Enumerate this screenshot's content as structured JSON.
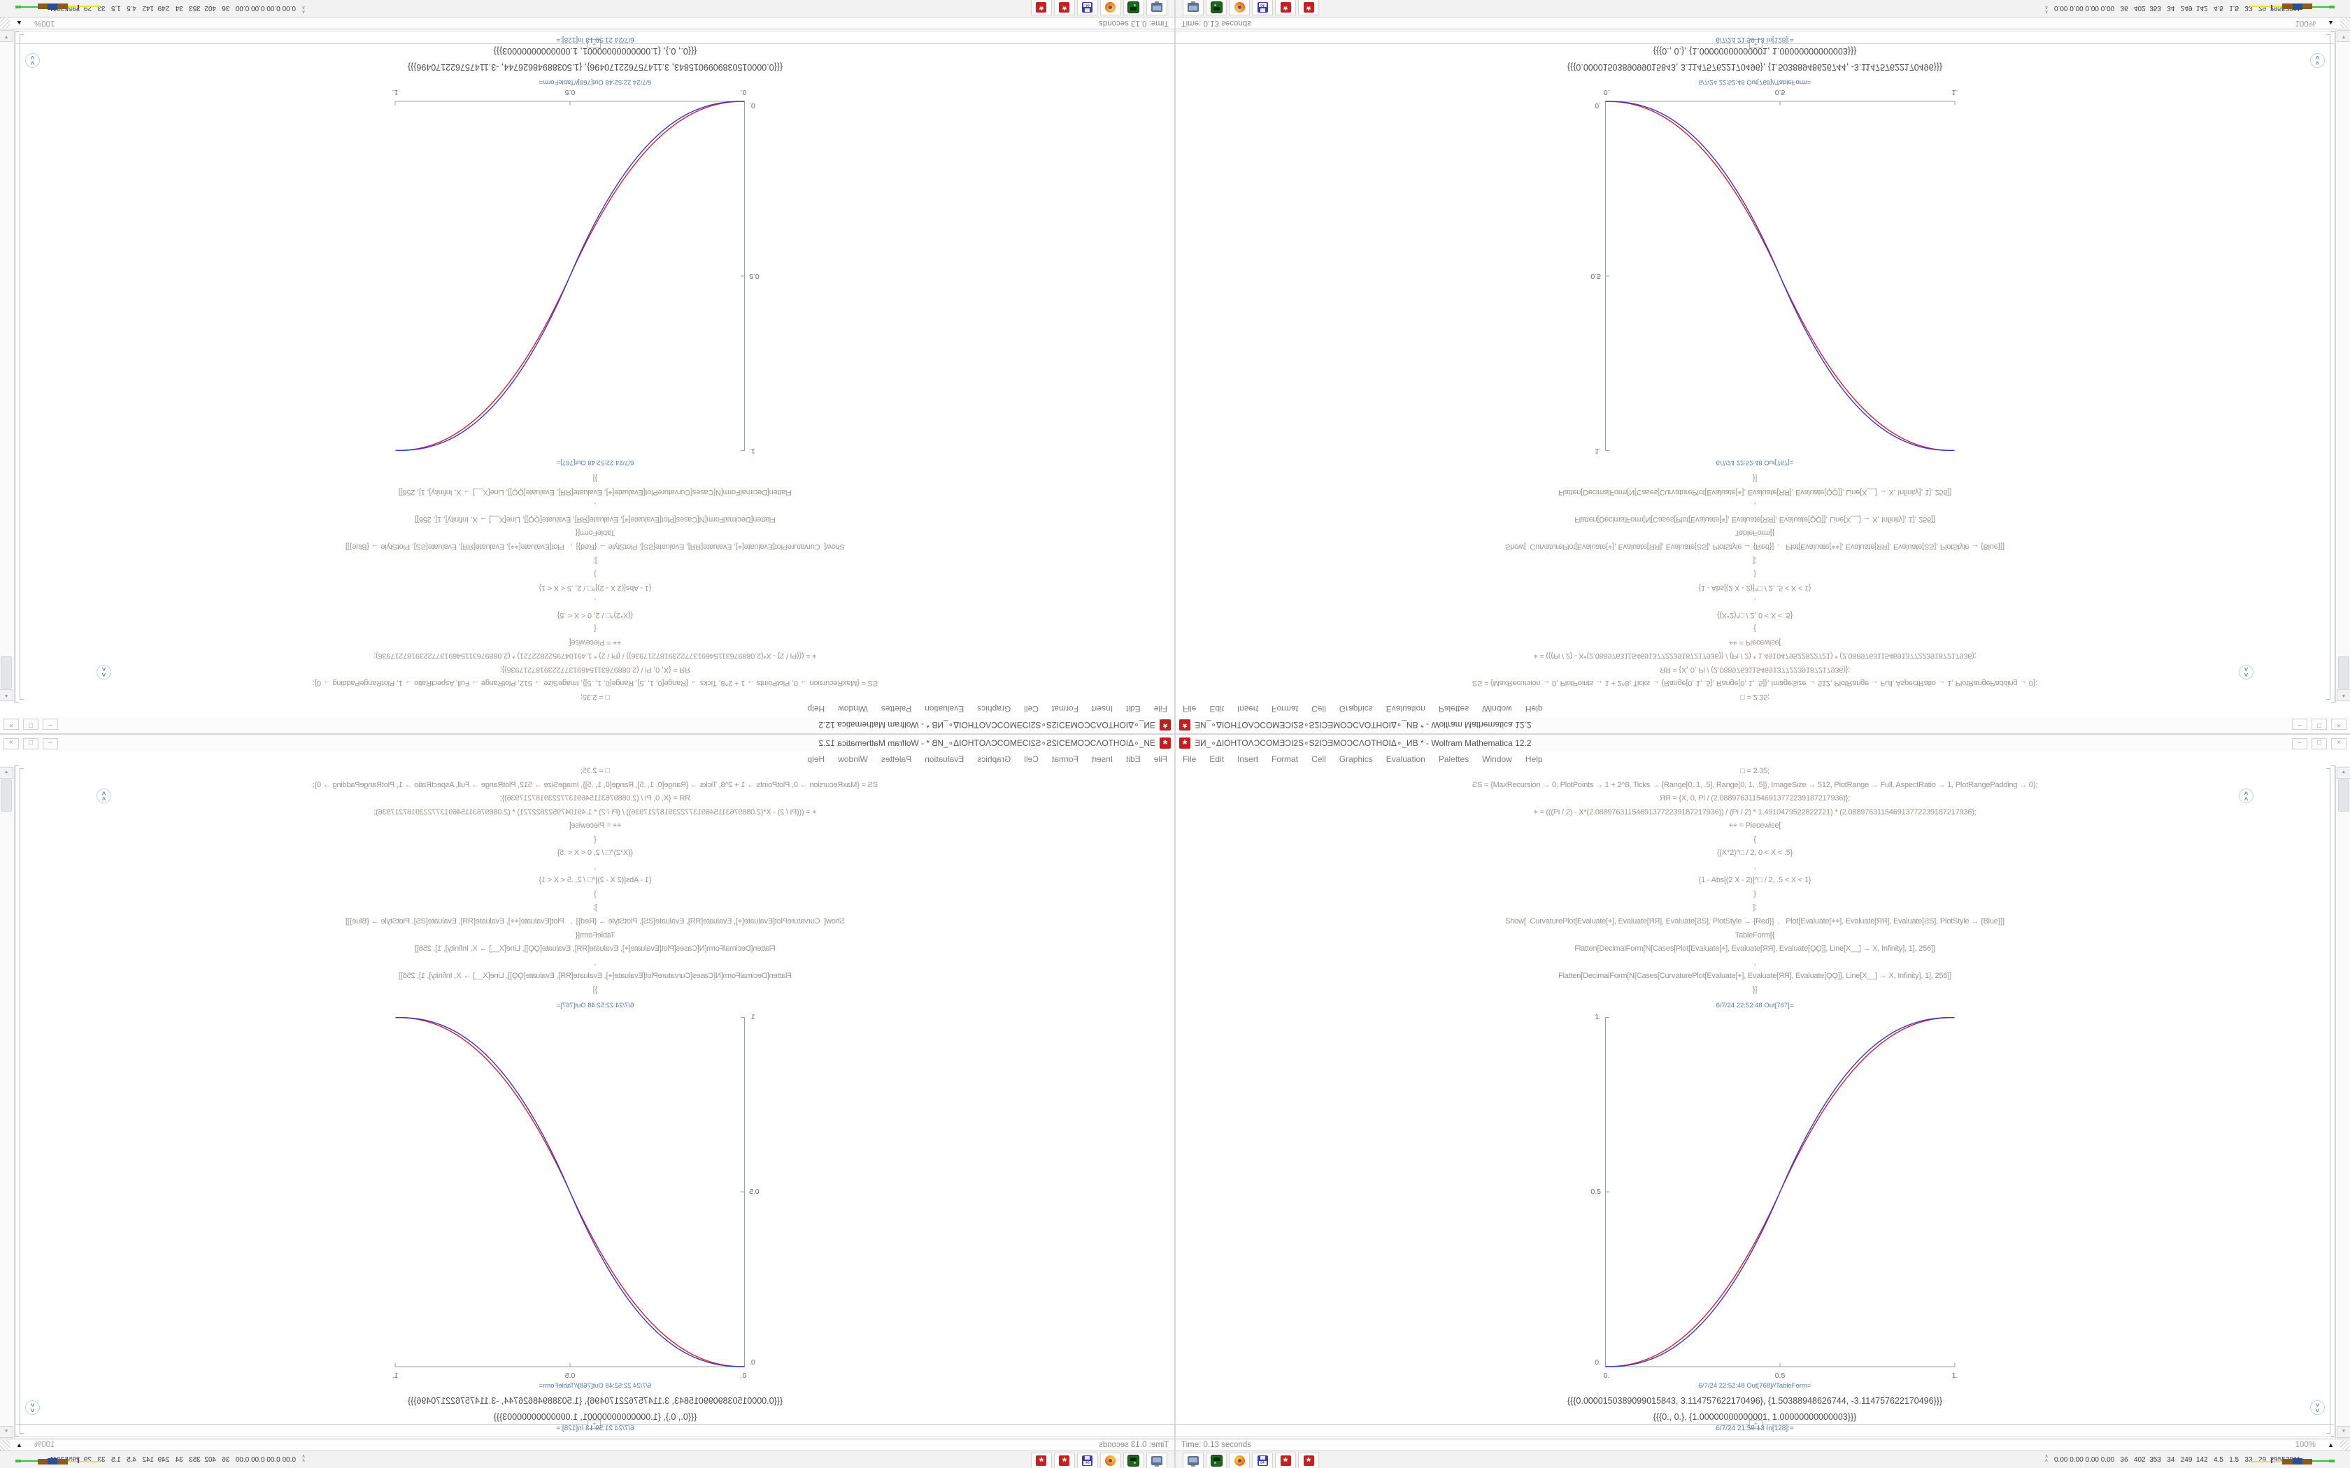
{
  "screen": {
    "window": {
      "title": "ƎИ_∘ΔIOHTOΛƆCOMƎƆI2S∘S2IƆƎMOƆCΛOTHOIΔ∘_ИB * - Wolfram Mathematica 12.2",
      "app_icon": "*",
      "buttons": {
        "minimize": "–",
        "maximize": "□",
        "close": "×"
      }
    },
    "menu": {
      "items": [
        "File",
        "Edit",
        "Insert",
        "Format",
        "Cell",
        "Graphics",
        "Evaluation",
        "Palettes",
        "Window",
        "Help"
      ]
    },
    "notebook": {
      "code_lines": [
        "□ = 2.35;",
        "ƧS = {MaxRecursion → 0, PlotPoints → 1 + 2^8, Ticks → {Range[0, 1, .5], Range[0, 1, .5]}, ImageSize → 512, PlotRange → Full, AspectRatio → 1, PlotRangePadding → 0};",
        "ЯЯ = {X, 0, Pi / (2.088976311546913772239187217936)};",
        "⌖ = (((Pi / 2) - X*(2.088976311546913772239187217936)) / (Pi / 2) * 1.4910479522822721) * (2.088976311546913772239187217936);",
        "⌖⌖ = Piecewise[",
        "{",
        "{(X*2)^□ / 2, 0 < X < .5}",
        ",",
        "{1 - Abs[(2 X - 2)]^□ / 2, .5 < X < 1}",
        "}",
        "];",
        "Show[  CurvaturePlot[Evaluate[⌖], Evaluate[ЯЯ], Evaluate[ƧS], PlotStyle → {Red}]  ,   Plot[Evaluate[⌖⌖], Evaluate[ЯЯ], Evaluate[ƧS], PlotStyle → {Blue}]]",
        "TableForm[{",
        "Flatten[DecimalForm[N[Cases[Plot[Evaluate[⌖], Evaluate[ЯЯ], Evaluate[ϘϘ]], Line[X__] → X, Infinity], 1], 256]]",
        ",",
        "Flatten[DecimalForm[N[Cases[CurvaturePlot[Evaluate[⌖], Evaluate[ЯЯ], Evaluate[ϘϘ]], Line[X__] → X, Infinity], 1], 256]]",
        "}]"
      ],
      "out_plot_label": "6/7/24 22:52:48 Out[767]=",
      "out_table_label": "6/7/24 22:52:48 Out[768]//TableForm=",
      "table_rows": [
        "{{{0.0000150389099015843, 3.114757622170496}, {1.50388948626744, -3.114757622170496}}}",
        "{{{0., 0.}, {1.00000000000001, 1.00000000000003}}}"
      ],
      "insert_plus": "+",
      "next_cell_label": "6/7/24 21:59:13 In[128]:="
    },
    "status_bar": {
      "time": "Time: 0.13 seconds",
      "zoom": "100%",
      "zoom_popup_glyph": "▲"
    },
    "scrollbar": {
      "up_glyph": "▲",
      "down_glyph": "▼"
    },
    "chevron_glyph_up": "∧",
    "chevron_glyph_down": "∨",
    "taskbar": {
      "buttons": [
        {
          "name": "screenshot-monitor"
        },
        {
          "name": "removable-drive"
        },
        {
          "name": "firefox-browser"
        },
        {
          "name": "floppy-64",
          "label": "64"
        },
        {
          "name": "mathematica-gear-1"
        },
        {
          "name": "mathematica-gear-2"
        }
      ],
      "floppy_label": "64",
      "gear_glyph": "*",
      "load_icon_glyph": "∧",
      "stats": "0.00 0.00 0.00 0.00   36   402  353   34   249  142   4.5   1.5   33   29  29553811",
      "minichart": [
        {
          "w": 30,
          "h": 2,
          "b": 5,
          "color": "#e6e632"
        },
        {
          "w": 2,
          "h": 7,
          "b": 4,
          "color": "#7a2ba0"
        },
        {
          "w": 14,
          "h": 2,
          "b": 5,
          "color": "#e6e632"
        },
        {
          "w": 15,
          "h": 8,
          "b": 2,
          "color": "#8a5a1e"
        },
        {
          "w": 14,
          "h": 9,
          "b": 2,
          "color": "#2a4f8f"
        },
        {
          "w": 14,
          "h": 8,
          "b": 2,
          "color": "#8a5a1e"
        },
        {
          "w": 24,
          "h": 2,
          "b": 6,
          "color": "#35c435"
        },
        {
          "w": 8,
          "h": 4,
          "b": 5,
          "color": "#35c435"
        }
      ]
    }
  },
  "chart_data": {
    "type": "line",
    "title": "Out[767]= Show[CurvaturePlot (red), Plot of Piecewise smoothstep (blue)]",
    "xlabel": "",
    "ylabel": "",
    "xlim": [
      0,
      1
    ],
    "ylim": [
      0,
      1
    ],
    "x_ticks": [
      0,
      0.5,
      1
    ],
    "y_ticks": [
      0,
      0.5,
      1
    ],
    "x_tick_labels": [
      "0.",
      "0.5",
      "1."
    ],
    "y_tick_labels": [
      "0.",
      "0.5",
      "1."
    ],
    "grid": false,
    "legend_position": "none",
    "aspect_ratio": 1,
    "piecewise_definition": "y = (2x)^2.35 / 2 for 0 < x < 0.5 ; y = 1 - |2x-2|^2.35 / 2 for 0.5 < x < 1",
    "x_samples": [
      0,
      0.1,
      0.2,
      0.3,
      0.4,
      0.5,
      0.6,
      0.7,
      0.8,
      0.9,
      1
    ],
    "series": [
      {
        "name": "CurvaturePlot[⌖] (PlotStyle Red)",
        "color": "#cc2233",
        "exponent": 2.2,
        "values": [
          0,
          0.0143,
          0.0663,
          0.1625,
          0.308,
          0.5,
          0.692,
          0.8375,
          0.9337,
          0.9857,
          1
        ]
      },
      {
        "name": "Plot[⌖⌖] (PlotStyle Blue)",
        "color": "#3a35c8",
        "exponent": 2.35,
        "values": [
          0,
          0.0114,
          0.058,
          0.1503,
          0.2961,
          0.5,
          0.7039,
          0.8497,
          0.942,
          0.9886,
          1
        ]
      }
    ]
  }
}
